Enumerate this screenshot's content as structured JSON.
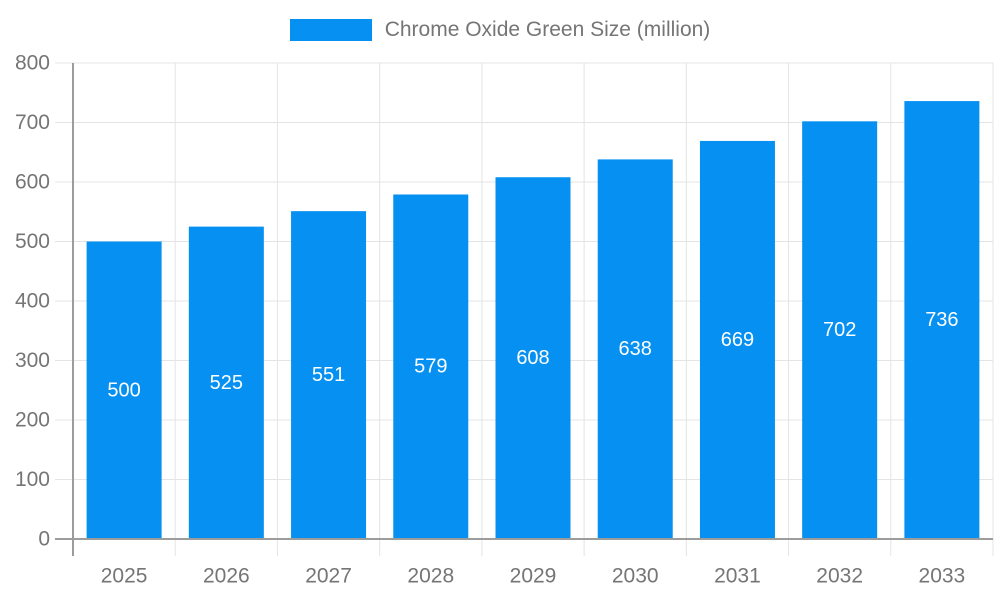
{
  "legend": {
    "label": "Chrome Oxide Green Size (million)"
  },
  "chart_data": {
    "type": "bar",
    "title": "Chrome Oxide Green Size (million)",
    "categories": [
      "2025",
      "2026",
      "2027",
      "2028",
      "2029",
      "2030",
      "2031",
      "2032",
      "2033"
    ],
    "values": [
      500,
      525,
      551,
      579,
      608,
      638,
      669,
      702,
      736
    ],
    "xlabel": "",
    "ylabel": "",
    "ylim": [
      0,
      800
    ],
    "ytick_step": 100,
    "yticks": [
      0,
      100,
      200,
      300,
      400,
      500,
      600,
      700,
      800
    ],
    "grid": "on",
    "legend_position": "top-center",
    "value_labels": "inside-center",
    "colors": {
      "bar": "#0590f2",
      "grid": "#e4e4e4",
      "axis": "#9c9c9c",
      "tick_text": "#757575",
      "value_label": "#ffffff",
      "background": "#ffffff"
    }
  }
}
